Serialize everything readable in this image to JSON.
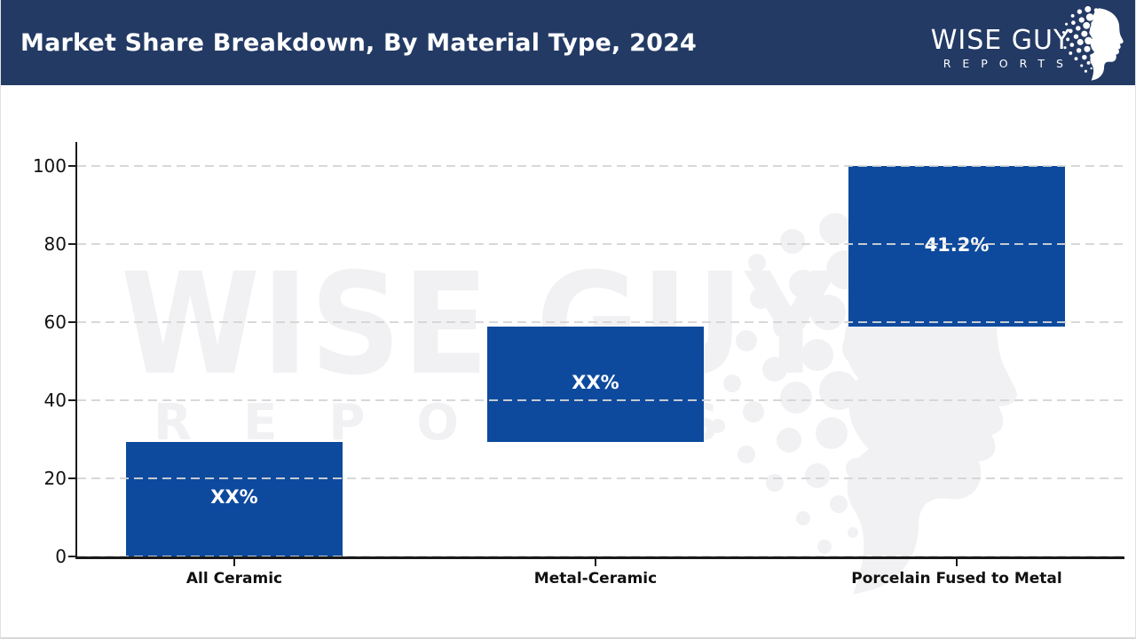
{
  "header": {
    "title": "Market Share Breakdown, By Material Type, 2024",
    "logo": {
      "name_top": "WISE GUY",
      "name_bottom": "REPORTS"
    }
  },
  "watermark": {
    "line1": "WISE GUY",
    "line2": "REPORTS"
  },
  "chart_data": {
    "type": "bar",
    "subtype": "waterfall-floating-bars",
    "title": "Market Share Breakdown, By Material Type, 2024",
    "categories": [
      "All Ceramic",
      "Metal-Ceramic",
      "Porcelain Fused to Metal"
    ],
    "series": [
      {
        "name": "Market share (%)",
        "segments": [
          {
            "category": "All Ceramic",
            "start": 0,
            "end": 29.4,
            "label": "XX%"
          },
          {
            "category": "Metal-Ceramic",
            "start": 29.4,
            "end": 58.8,
            "label": "XX%"
          },
          {
            "category": "Porcelain Fused to Metal",
            "start": 58.8,
            "end": 100,
            "label": "41.2%"
          }
        ]
      }
    ],
    "xlabel": "",
    "ylabel": "",
    "ylim": [
      0,
      100
    ],
    "yticks": [
      0,
      20,
      40,
      60,
      80,
      100
    ],
    "grid": "horizontal-dashed",
    "legend": "none",
    "bar_color": "#0d4a9e",
    "bar_label_color": "#ffffff",
    "axis_color": "#1a1a1a",
    "gridline_color": "#d5d5d5",
    "header_bg": "#233a64",
    "watermark_color": "#f1f1f3"
  }
}
